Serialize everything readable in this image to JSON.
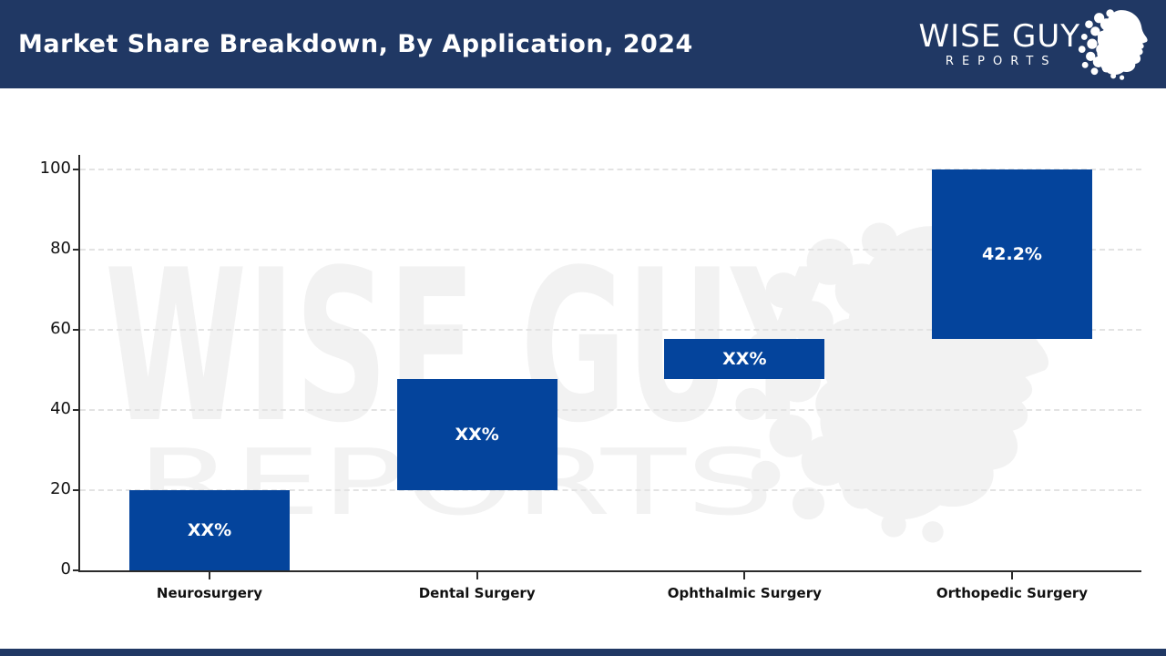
{
  "header": {
    "title": "Market Share Breakdown, By Application, 2024",
    "logo_primary": "WISE GUY",
    "logo_secondary": "REPORTS"
  },
  "watermark": {
    "primary": "WISE GUY",
    "secondary": "REPORTS"
  },
  "colors": {
    "header_bg": "#203864",
    "bar_blue": "#04449c",
    "watermark_gray": "#f2f2f2",
    "gridline": "#e3e3e3",
    "axis": "#2b2b2b",
    "bar_label": "#ffffff"
  },
  "chart_data": {
    "type": "bar",
    "subtype": "waterfall",
    "title": "Market Share Breakdown, By Application, 2024",
    "xlabel": "",
    "ylabel": "",
    "categories": [
      "Neurosurgery",
      "Dental Surgery",
      "Ophthalmic Surgery",
      "Orthopedic Surgery"
    ],
    "segments": [
      {
        "category": "Neurosurgery",
        "start": 0,
        "end": 20,
        "value_label": "XX%"
      },
      {
        "category": "Dental Surgery",
        "start": 20,
        "end": 47.8,
        "value_label": "XX%"
      },
      {
        "category": "Ophthalmic Surgery",
        "start": 47.8,
        "end": 57.8,
        "value_label": "XX%"
      },
      {
        "category": "Orthopedic Surgery",
        "start": 57.8,
        "end": 100,
        "value_label": "42.2%"
      }
    ],
    "yticks": [
      0,
      20,
      40,
      60,
      80,
      100
    ],
    "ylim": [
      0,
      104
    ],
    "grid": "horizontal-dashed",
    "legend": "none",
    "bar_color": "#04449c"
  }
}
